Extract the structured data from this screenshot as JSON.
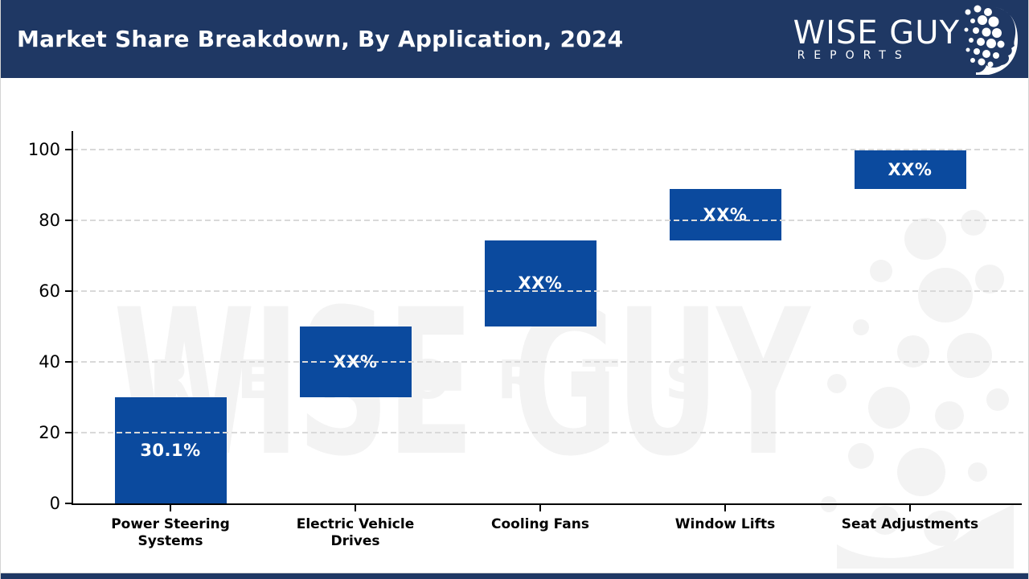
{
  "header": {
    "title": "Market Share Breakdown, By Application, 2024",
    "logo": {
      "wordmark": "WISE GUY",
      "subtitle": "REPORTS"
    }
  },
  "watermark": {
    "line1": "WISE GUY",
    "line2": "REPORTS"
  },
  "colors": {
    "header_navy": "#1f3864",
    "bar_blue": "#0b4a9e",
    "bar_label_white": "#ffffff",
    "gridline_gray": "#d9d9d9",
    "watermark_gray": "#f3f3f3",
    "axis_black": "#000000"
  },
  "chart_data": {
    "type": "bar",
    "subtype": "waterfall-floating-segments",
    "title": "Market Share Breakdown, By Application, 2024",
    "categories": [
      "Power Steering Systems",
      "Electric Vehicle Drives",
      "Cooling Fans",
      "Window Lifts",
      "Seat Adjustments"
    ],
    "segments": [
      {
        "category": "Power Steering Systems",
        "start": 0,
        "end": 30.1,
        "label": "30.1%"
      },
      {
        "category": "Electric Vehicle Drives",
        "start": 30.1,
        "end": 50.1,
        "label": "XX%"
      },
      {
        "category": "Cooling Fans",
        "start": 50.1,
        "end": 74.4,
        "label": "XX%"
      },
      {
        "category": "Window Lifts",
        "start": 74.4,
        "end": 88.9,
        "label": "XX%"
      },
      {
        "category": "Seat Adjustments",
        "start": 88.9,
        "end": 99.8,
        "label": "XX%"
      }
    ],
    "yticks": [
      0,
      20,
      40,
      60,
      80,
      100
    ],
    "ylim": [
      0,
      105
    ],
    "xlabel": "",
    "ylabel": "",
    "grid": "horizontal-dashed, drawn above bars",
    "legend": "none"
  }
}
